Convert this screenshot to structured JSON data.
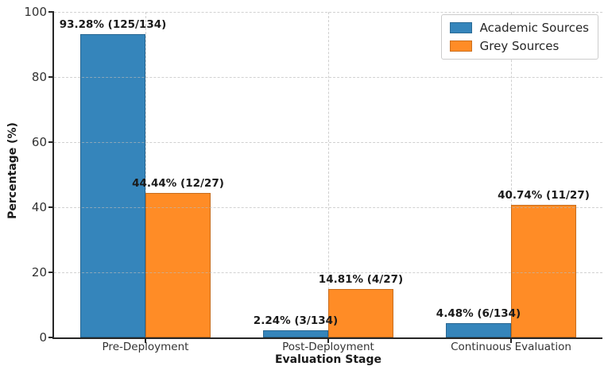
{
  "chart_data": {
    "type": "bar",
    "title": "",
    "xlabel": "Evaluation Stage",
    "ylabel": "Percentage (%)",
    "categories": [
      "Pre-Deployment",
      "Post-Deployment",
      "Continuous Evaluation"
    ],
    "series": [
      {
        "name": "Academic Sources",
        "color": "#3585bb",
        "values": [
          93.28,
          2.24,
          4.48
        ],
        "bar_labels": [
          "93.28% (125/134)",
          "2.24% (3/134)",
          "4.48% (6/134)"
        ]
      },
      {
        "name": "Grey Sources",
        "color": "#ff8c26",
        "values": [
          44.44,
          14.81,
          40.74
        ],
        "bar_labels": [
          "44.44% (12/27)",
          "14.81% (4/27)",
          "40.74% (11/27)"
        ]
      }
    ],
    "ylim": [
      0,
      100
    ],
    "yticks": [
      0,
      20,
      40,
      60,
      80,
      100
    ],
    "grid": {
      "horizontal": true,
      "vertical": true,
      "style": "dashed",
      "drawn_above_bars": true
    },
    "legend_position": "upper-right"
  },
  "style_colors": {
    "academic_blue": "#3585bb",
    "grey_orange": "#ff8c26",
    "spine": "#262626",
    "gridline": "#cfcfcf",
    "tick_label": "#333333",
    "bar_label": "#1a1a1a",
    "legend_border": "#cccccc",
    "background": "#ffffff"
  }
}
